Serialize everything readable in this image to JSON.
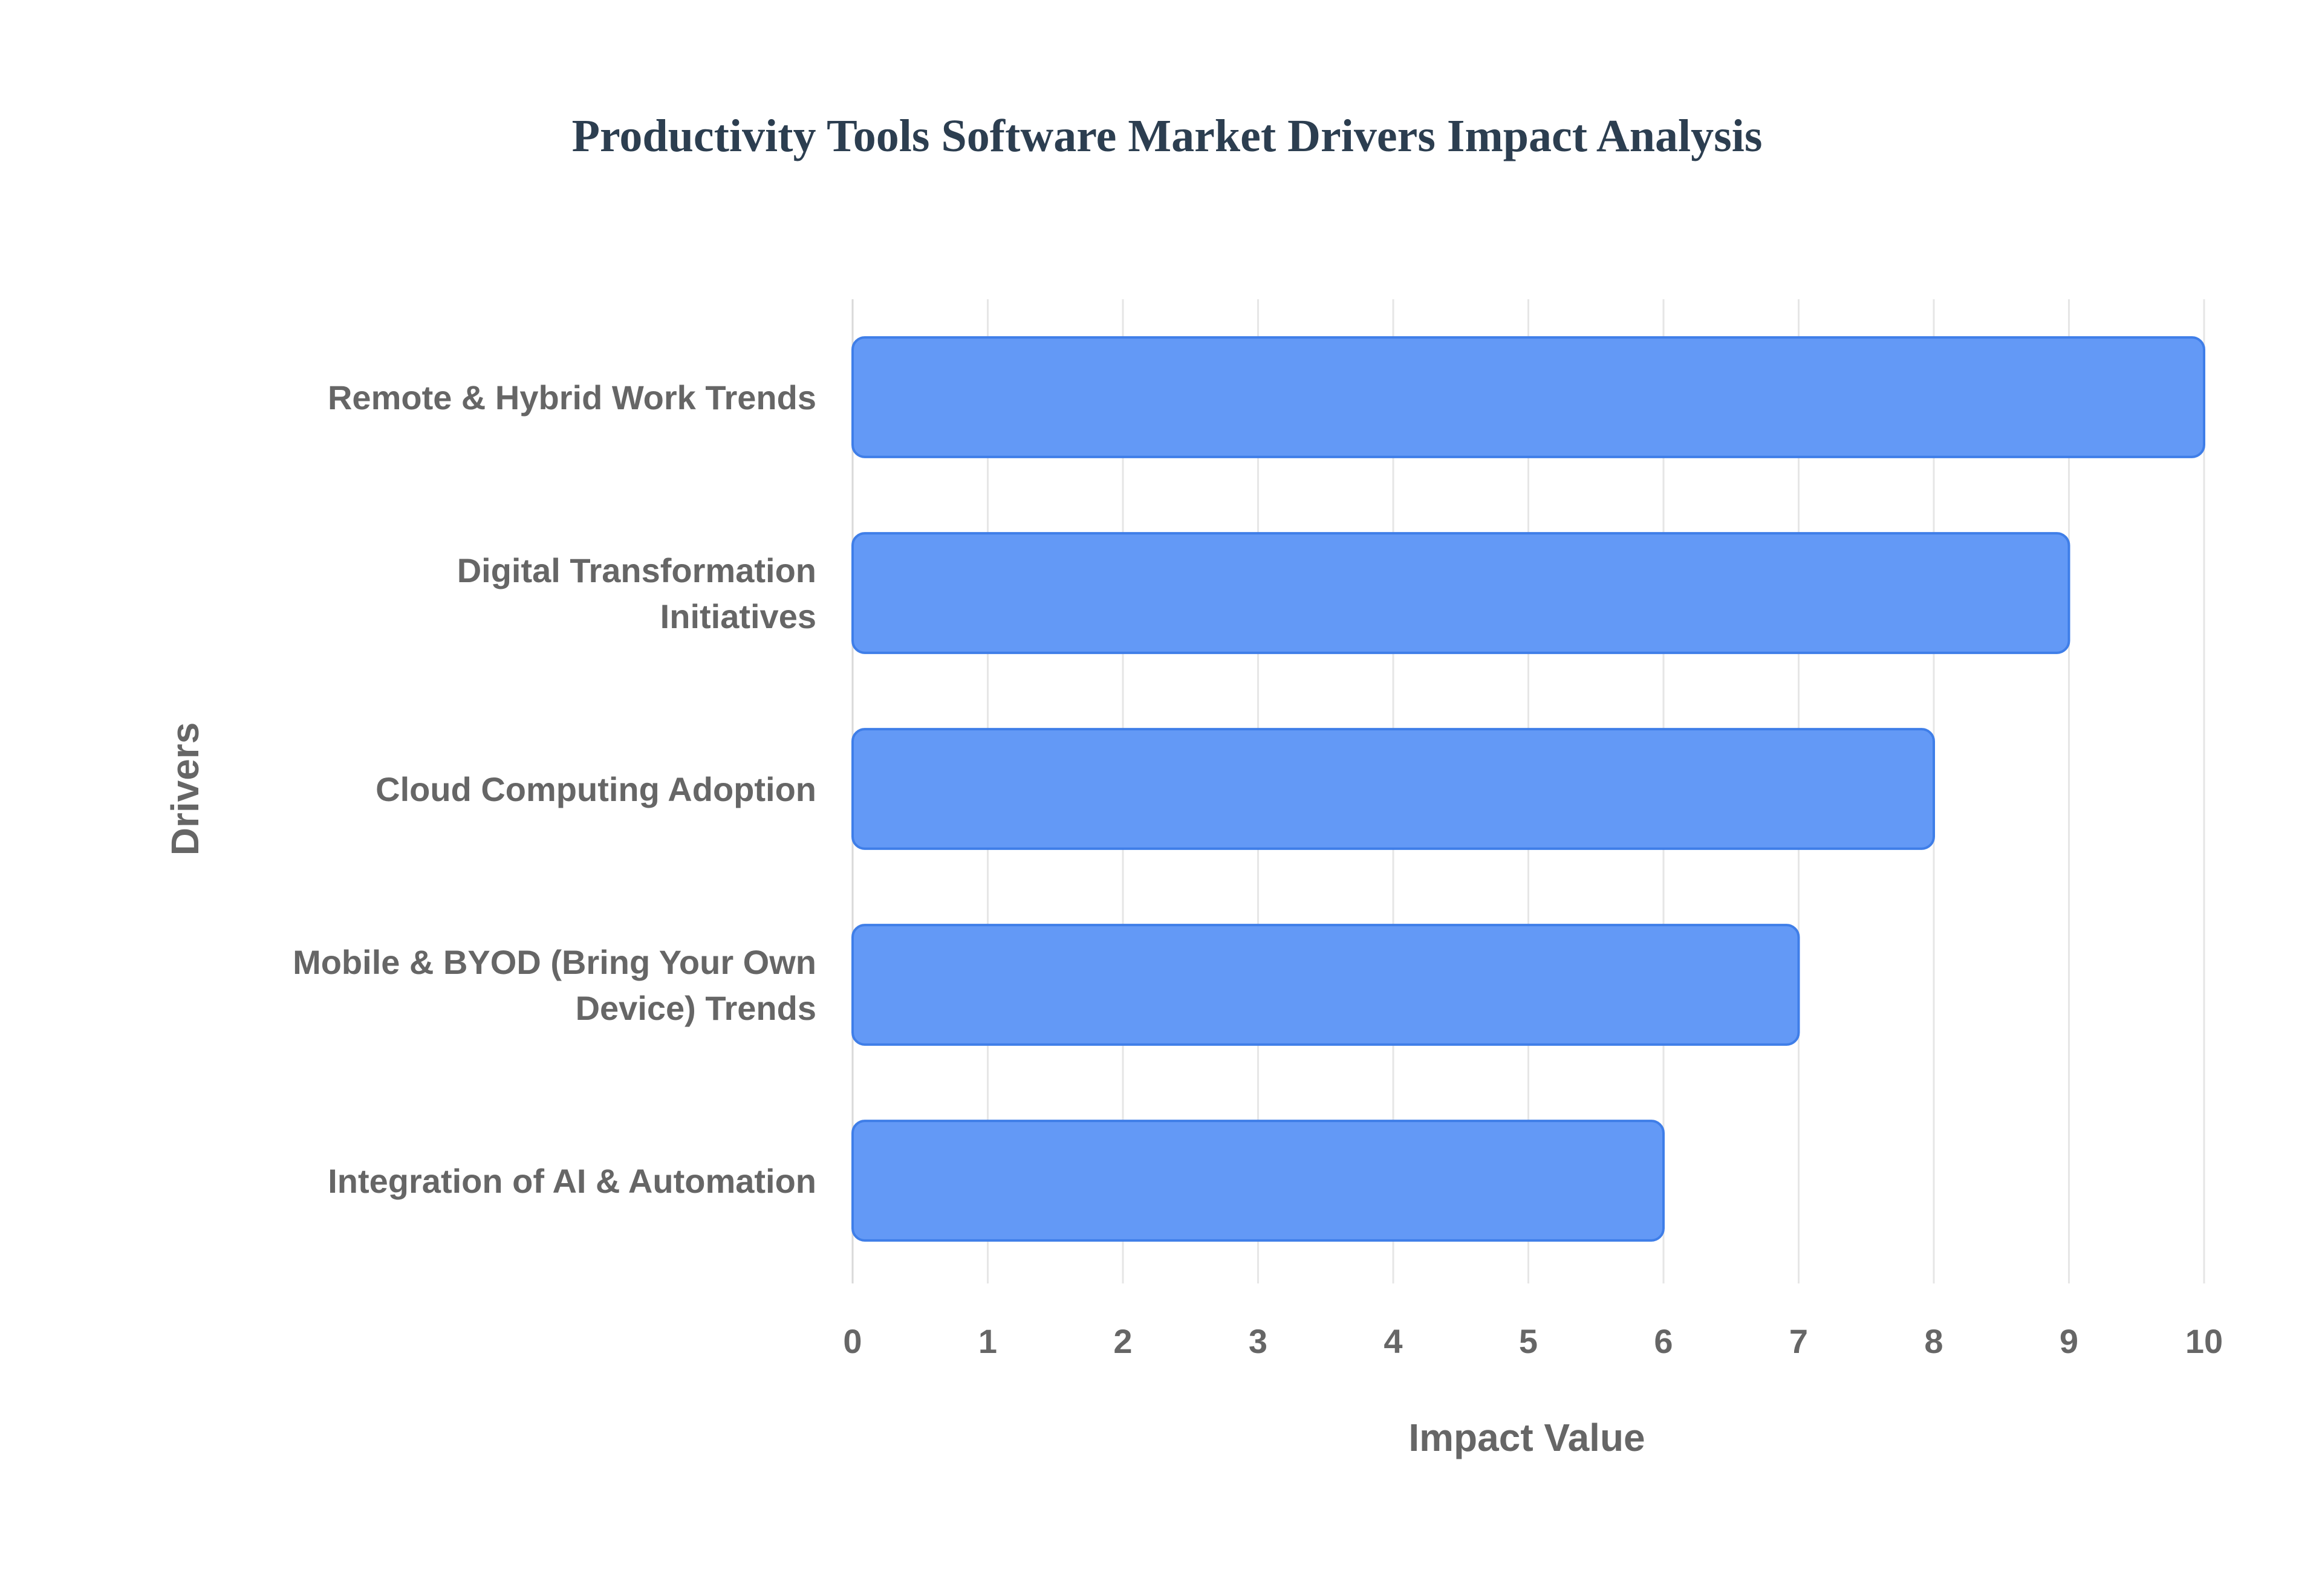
{
  "chart_data": {
    "type": "bar",
    "orientation": "horizontal",
    "title": "Productivity Tools Software Market  Drivers Impact Analysis",
    "xlabel": "Impact Value",
    "ylabel": "Drivers",
    "categories": [
      [
        "Remote & Hybrid Work Trends"
      ],
      [
        "Digital Transformation",
        "Initiatives"
      ],
      [
        "Cloud Computing Adoption"
      ],
      [
        "Mobile & BYOD (Bring Your Own",
        "Device) Trends"
      ],
      [
        "Integration of AI & Automation"
      ]
    ],
    "values": [
      10,
      9,
      8,
      7,
      6
    ],
    "xlim": [
      0,
      10
    ],
    "xticks": [
      0,
      1,
      2,
      3,
      4,
      5,
      6,
      7,
      8,
      9,
      10
    ],
    "grid": true,
    "legend": "none",
    "colors": {
      "bar_fill": "#6399f6",
      "bar_stroke": "#3f7ee8",
      "title": "#2c3e50",
      "text": "#666666",
      "grid": "#e6e6e6"
    }
  }
}
